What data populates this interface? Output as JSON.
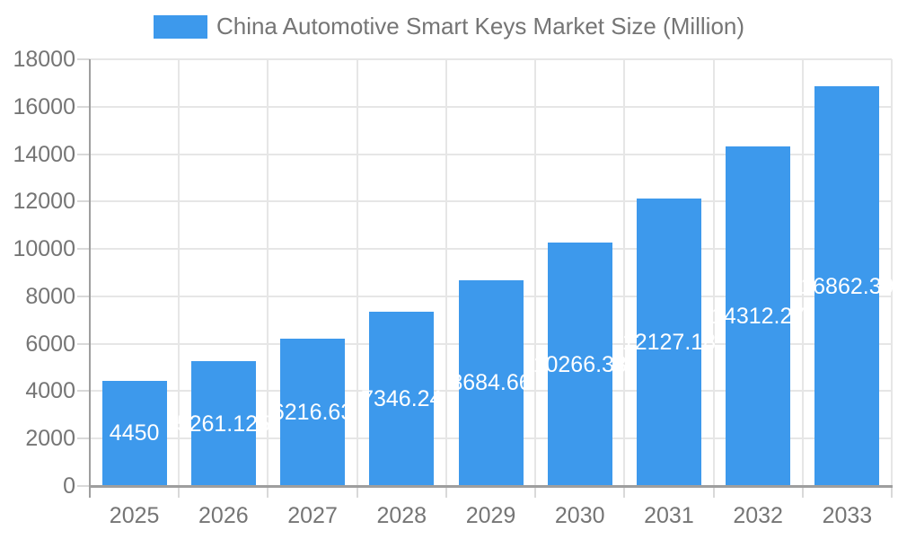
{
  "chart_data": {
    "type": "bar",
    "title": "China Automotive Smart Keys Market Size (Million)",
    "categories": [
      "2025",
      "2026",
      "2027",
      "2028",
      "2029",
      "2030",
      "2031",
      "2032",
      "2033"
    ],
    "values": [
      4450,
      5261.125,
      6216.63,
      7346.24,
      8684.66,
      10266.33,
      12127.18,
      14312.27,
      16862.39
    ],
    "value_labels": [
      "4450",
      "5261.125",
      "6216.63",
      "7346.24",
      "8684.66",
      "10266.33",
      "12127.18",
      "14312.27",
      "16862.39"
    ],
    "xlabel": "",
    "ylabel": "",
    "ylim": [
      0,
      18000
    ],
    "ytick_step": 2000,
    "yticks": [
      0,
      2000,
      4000,
      6000,
      8000,
      10000,
      12000,
      14000,
      16000,
      18000
    ],
    "grid": true,
    "legend": {
      "position": "top",
      "entries": [
        {
          "label": "China Automotive Smart Keys Market Size (Million)",
          "color": "#3d99ec"
        }
      ]
    },
    "colors": {
      "bar": "#3d99ec",
      "value_label": "#ffffff",
      "axis_text": "#757575",
      "grid_line": "#e6e6e6",
      "tick_line": "#d9d9d9",
      "axis_line": "#9e9e9e",
      "background": "#ffffff"
    }
  }
}
